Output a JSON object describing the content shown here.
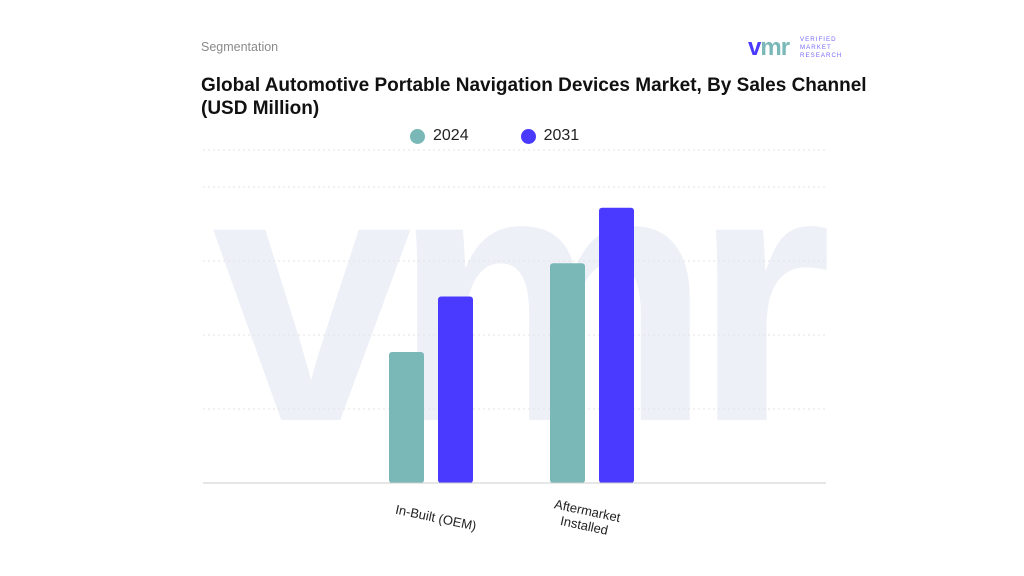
{
  "header": {
    "segment_label": "Segmentation",
    "title_line1": "Global Automotive Portable Navigation Devices Market, By Sales Channel",
    "title_line2": "(USD Million)"
  },
  "logo": {
    "mark": "vmr",
    "line1": "VERIFIED",
    "line2": "MARKET",
    "line3": "RESEARCH",
    "colors": {
      "v": "#4a3aff",
      "mr": "#7ab8b8"
    }
  },
  "watermark": "vmr",
  "chart_data": {
    "type": "bar",
    "categories": [
      "In-Built (OEM)",
      "Aftermarket Installed"
    ],
    "series": [
      {
        "name": "2024",
        "color": "#7ab8b8",
        "values": [
          118,
          198
        ]
      },
      {
        "name": "2031",
        "color": "#4a3aff",
        "values": [
          168,
          248
        ]
      }
    ],
    "ylim": [
      0,
      300
    ],
    "grid": true,
    "y_tick_labels": false,
    "legend_position": "top-center"
  }
}
